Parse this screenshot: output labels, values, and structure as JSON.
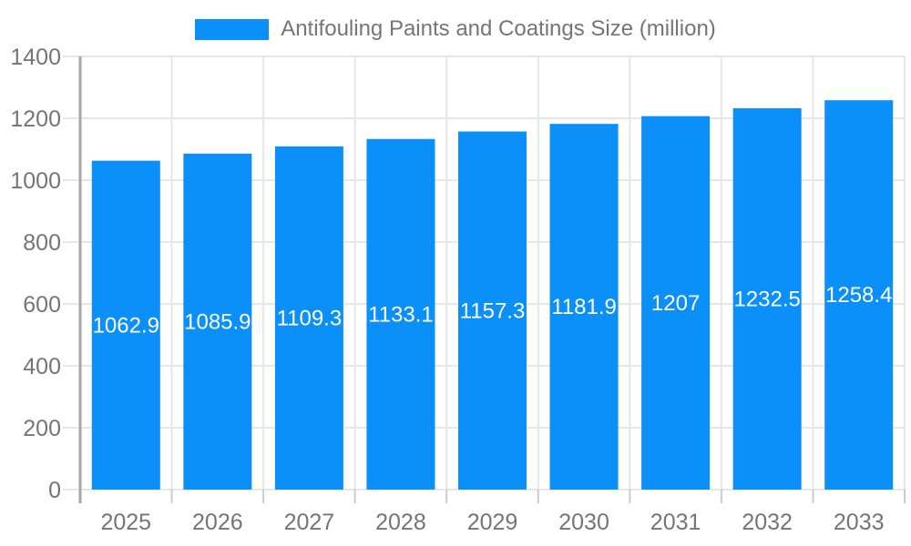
{
  "chart_data": {
    "type": "bar",
    "categories": [
      "2025",
      "2026",
      "2027",
      "2028",
      "2029",
      "2030",
      "2031",
      "2032",
      "2033"
    ],
    "series": [
      {
        "name": "Antifouling Paints and Coatings Size (million)",
        "values": [
          1062.9,
          1085.9,
          1109.3,
          1133.1,
          1157.3,
          1181.9,
          1207,
          1232.5,
          1258.4
        ]
      }
    ],
    "title": "",
    "xlabel": "",
    "ylabel": "",
    "ylim": [
      0,
      1400
    ],
    "ytick_step": 200,
    "grid": true,
    "legend_position": "top-center",
    "bar_labels_inside": true,
    "colors": {
      "bar": "#0a90f8",
      "grid": "#e6e6e6",
      "x_tick": "#cccccc",
      "axis": "#a6a6a6",
      "tick_text": "#757575",
      "bar_label": "#ffffff",
      "background": "#ffffff"
    }
  }
}
